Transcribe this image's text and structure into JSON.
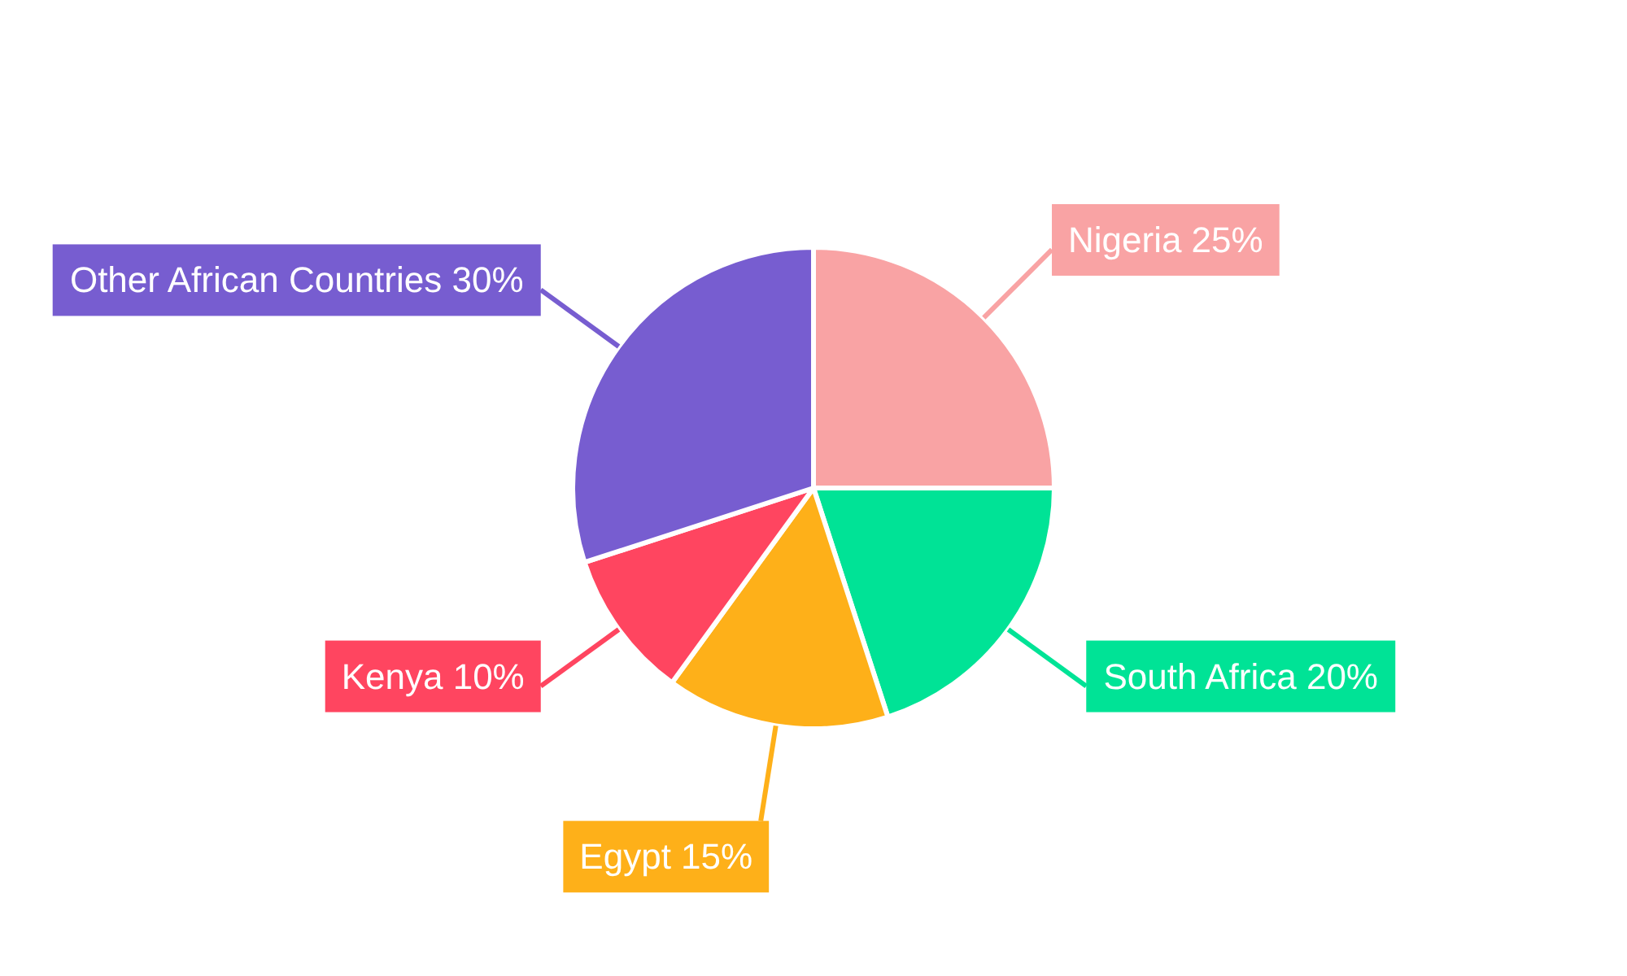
{
  "chart_data": {
    "type": "pie",
    "categories": [
      "Nigeria",
      "South Africa",
      "Egypt",
      "Kenya",
      "Other African Countries"
    ],
    "values": [
      25,
      20,
      15,
      10,
      30
    ],
    "colors": [
      "#f9a3a4",
      "#00e396",
      "#feb019",
      "#ff4560",
      "#775dd0"
    ],
    "value_labels": [
      "25%",
      "20%",
      "15%",
      "10%",
      "30%"
    ]
  }
}
